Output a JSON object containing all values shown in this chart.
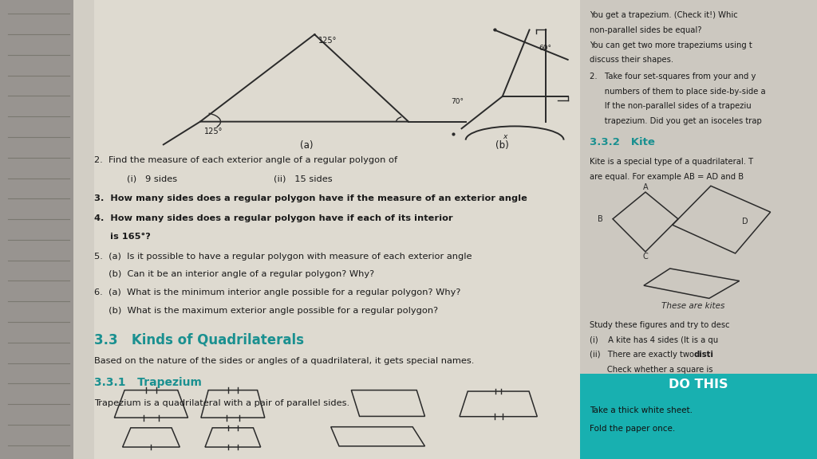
{
  "bg_color": "#b8b4ac",
  "page_bg": "#dedad0",
  "right_bg": "#ccc8c0",
  "spine_bg": "#989490",
  "title_color": "#1a9090",
  "body_text_color": "#1a1a1a",
  "angle_125_top": "125°",
  "angle_125_bot": "125°",
  "angle_60": "60°",
  "angle_70": "70°",
  "angle_x": "x",
  "label_a": "(a)",
  "label_b": "(b)",
  "q2_text": "2.  Find the measure of each exterior angle of a regular polygon of",
  "q2i": "(i)   9 sides",
  "q2ii": "(ii)   15 sides",
  "q3_text": "3.  How many sides does a regular polygon have if the measure of an exterior angle",
  "q4_text": "4.  How many sides does a regular polygon have if each of its interior",
  "q4b": "     is 165°?",
  "q5a": "5.  (a)  Is it possible to have a regular polygon with measure of each exterior angle",
  "q5b": "     (b)  Can it be an interior angle of a regular polygon? Why?",
  "q6a": "6.  (a)  What is the minimum interior angle possible for a regular polygon? Why?",
  "q6b": "     (b)  What is the maximum exterior angle possible for a regular polygon?",
  "section_title": "3.3   Kinds of Quadrilaterals",
  "section_text": "Based on the nature of the sides or angles of a quadrilateral, it gets special names.",
  "subsection_title": "3.3.1   Trapezium",
  "trapezium_text": "Trapezium is a quadrilateral with a pair of parallel sides.",
  "right_l1": "You get a trapezium. (Check it!) Whic",
  "right_l2": "non-parallel sides be equal?",
  "right_l3": "You can get two more trapeziums using t",
  "right_l4": "discuss their shapes.",
  "right_l5": "2.   Take four set-squares from your and y",
  "right_l6": "      numbers of them to place side-by-side a",
  "right_l7": "      If the non-parallel sides of a trapeziu",
  "right_l8": "      trapezium. Did you get an isoceles trap",
  "kite_title": "3.3.2   Kite",
  "kite_l1": "Kite is a special type of a quadrilateral. T",
  "kite_l2": "are equal. For example AB = AD and B",
  "kite_caption": "These are kites",
  "kite_study": "Study these figures and try to desc",
  "kite_i": "(i)    A kite has 4 sides (It is a qu",
  "kite_ii1": "(ii)   There are exactly two ",
  "kite_ii2": "disti",
  "kite_iii": "       Check whether a square is",
  "do_this_bg": "#18b0b0",
  "do_this_title": "DO THIS",
  "do_this_l1": "Take a thick white sheet.",
  "do_this_l2": "Fold the paper once."
}
